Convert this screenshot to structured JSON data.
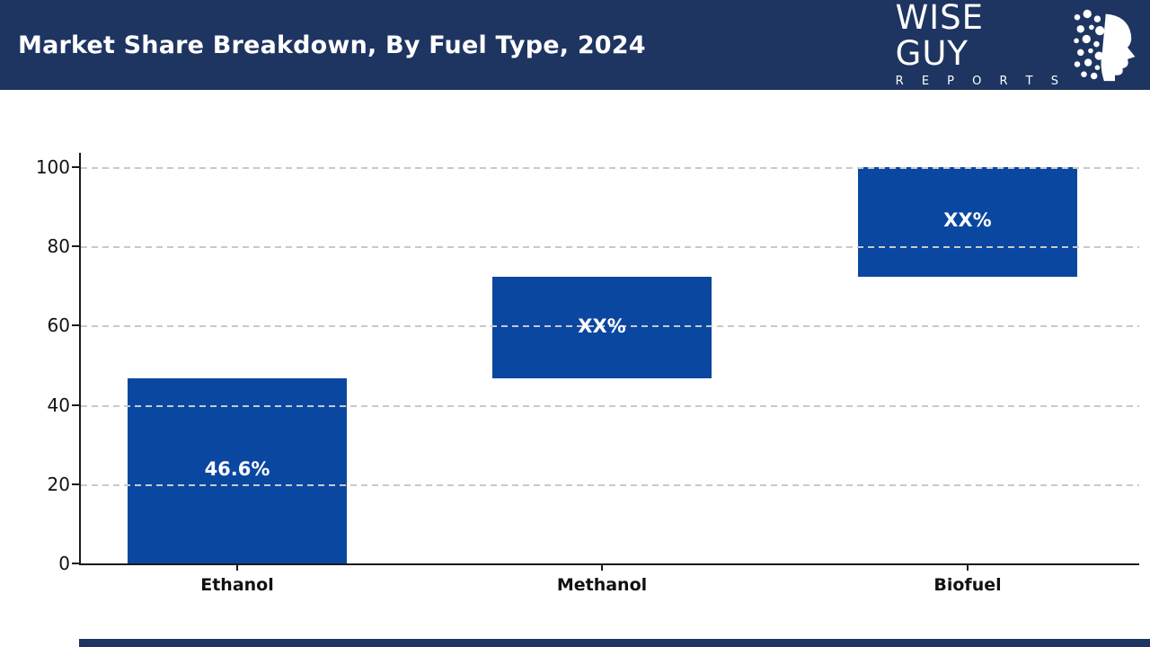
{
  "header": {
    "title": "Market Share Breakdown, By Fuel Type, 2024",
    "bg_color": "#1e3461",
    "logo": {
      "line1": "WISE GUY",
      "line2": "R E P O R T S"
    }
  },
  "chart_data": {
    "type": "bar",
    "variant": "waterfall",
    "title": "Market Share Breakdown, By Fuel Type, 2024",
    "categories": [
      "Ethanol",
      "Methanol",
      "Biofuel"
    ],
    "segments": [
      {
        "category": "Ethanol",
        "start": 0,
        "end": 46.6,
        "label": "46.6%"
      },
      {
        "category": "Methanol",
        "start": 46.6,
        "end": 72.4,
        "label": "XX%"
      },
      {
        "category": "Biofuel",
        "start": 72.4,
        "end": 100,
        "label": "XX%"
      }
    ],
    "ylim": [
      0,
      100
    ],
    "yticks": [
      0,
      20,
      40,
      60,
      80,
      100
    ],
    "xlabel": "",
    "ylabel": "",
    "grid": "horizontal-dashed",
    "legend": "none",
    "bar_color": "#0a47a0",
    "bar_label_color": "#ffffff",
    "axis_color": "#1a1a1a",
    "gridline_color": "#c9c9c9"
  },
  "watermark": {
    "line1": "WISE GUY",
    "line2": "R E P O R T S"
  },
  "footer": {
    "bg_color": "#1e3461"
  }
}
